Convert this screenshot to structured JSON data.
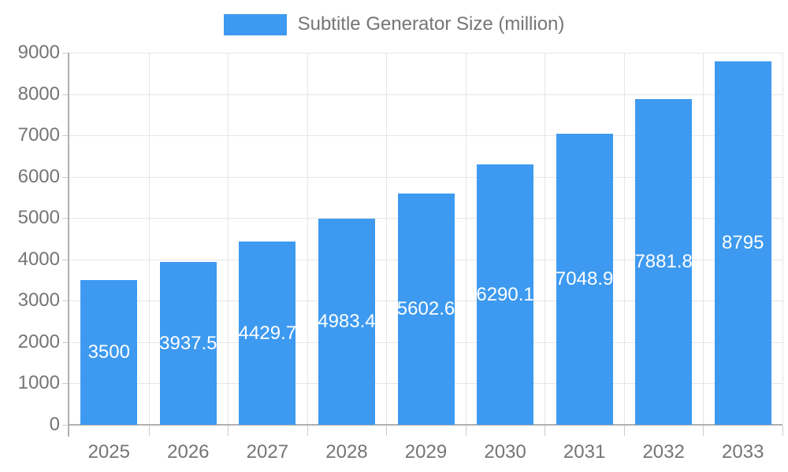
{
  "legend": {
    "label": "Subtitle Generator Size (million)",
    "swatch_color": "#3D9AF0"
  },
  "chart_data": {
    "type": "bar",
    "title": "Subtitle Generator Size (million)",
    "categories": [
      "2025",
      "2026",
      "2027",
      "2028",
      "2029",
      "2030",
      "2031",
      "2032",
      "2033"
    ],
    "values": [
      3500,
      3937.5,
      4429.7,
      4983.4,
      5602.6,
      6290.1,
      7048.9,
      7881.8,
      8795
    ],
    "value_labels": [
      "3500",
      "3937.5",
      "4429.7",
      "4983.4",
      "5602.6",
      "6290.1",
      "7048.9",
      "7881.8",
      "8795"
    ],
    "xlabel": "",
    "ylabel": "",
    "ylim": [
      0,
      9000
    ],
    "y_ticks": [
      0,
      1000,
      2000,
      3000,
      4000,
      5000,
      6000,
      7000,
      8000,
      9000
    ],
    "grid": true,
    "legend_position": "top",
    "bar_color": "#3D9AF0",
    "value_label_color": "#ffffff",
    "axis_line_color": "#b0b0b0",
    "grid_line_color": "#e6e6e6",
    "tick_text_color": "#757575"
  }
}
